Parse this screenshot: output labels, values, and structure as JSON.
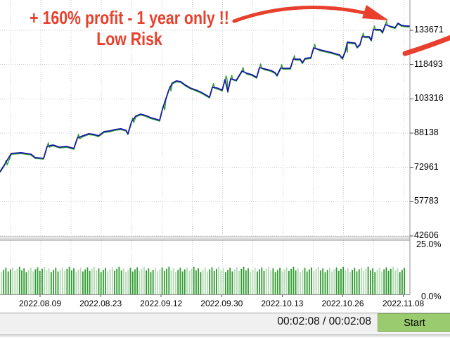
{
  "app": {
    "context": "strategy-tester-visualization"
  },
  "annotation": {
    "title": "+ 160% profit - 1 year only !!",
    "subtitle": "Low Risk",
    "color": "#e8402c",
    "arrow": "curved red arrow from headline to final equity peak",
    "swoosh": "red curved stroke entering from right edge below top value label"
  },
  "status_bar": {
    "timer_text": "00:02:08 / 00:02:08",
    "start_button_label": "Start",
    "start_button_color": "#9acb6f",
    "background": "#f0f0f0"
  },
  "colors": {
    "balance_line": "#1616a7",
    "equity_line": "#2e9e2e",
    "grid": "#cbcbcb",
    "panel_border": "#8f8f8f",
    "bar_dark": "#2f9b2f",
    "bar_light": "#b4d9b4",
    "annotation_red": "#e8402c"
  },
  "chart_data": {
    "type": "line",
    "title": "+ 160% profit - 1 year only !!",
    "subtitle": "Low Risk",
    "grid": {
      "on": true,
      "style": "dashed"
    },
    "legend": "none",
    "x_ticks": [
      "2022.08.09",
      "2022.08.23",
      "2022.09.12",
      "2022.09.30",
      "2022.10.13",
      "2022.10.26",
      "2022.11.08"
    ],
    "panels": [
      {
        "name": "balance-equity",
        "y_ticks": [
          "133671",
          "118493",
          "103316",
          "88138",
          "72961",
          "57783",
          "42606"
        ],
        "y_tick_values": [
          133671,
          118493,
          103316,
          88138,
          72961,
          57783,
          42606
        ],
        "ylim_approx": [
          41900,
          147000
        ],
        "series": [
          {
            "name": "balance",
            "color": "#1616a7",
            "points": [
              [
                0,
                71200
              ],
              [
                7,
                74600
              ],
              [
                16,
                79250
              ],
              [
                30,
                79550
              ],
              [
                44,
                78950
              ],
              [
                50,
                77400
              ],
              [
                62,
                77100
              ],
              [
                67,
                82350
              ],
              [
                75,
                83000
              ],
              [
                85,
                82050
              ],
              [
                95,
                82350
              ],
              [
                105,
                81450
              ],
              [
                110,
                86100
              ],
              [
                118,
                87050
              ],
              [
                126,
                87950
              ],
              [
                134,
                87650
              ],
              [
                140,
                87050
              ],
              [
                148,
                88900
              ],
              [
                156,
                89200
              ],
              [
                164,
                89850
              ],
              [
                172,
                90150
              ],
              [
                179,
                89500
              ],
              [
                182,
                87950
              ],
              [
                187,
                93250
              ],
              [
                193,
                95750
              ],
              [
                200,
                96650
              ],
              [
                207,
                96050
              ],
              [
                214,
                95100
              ],
              [
                221,
                94500
              ],
              [
                227,
                93900
              ],
              [
                231,
                98850
              ],
              [
                236,
                103500
              ],
              [
                240,
                107250
              ],
              [
                245,
                110350
              ],
              [
                251,
                111300
              ],
              [
                257,
                111000
              ],
              [
                264,
                109400
              ],
              [
                271,
                108150
              ],
              [
                279,
                107250
              ],
              [
                286,
                106300
              ],
              [
                293,
                105050
              ],
              [
                298,
                104150
              ],
              [
                302,
                108500
              ],
              [
                309,
                108150
              ],
              [
                316,
                107250
              ],
              [
                320,
                111900
              ],
              [
                324,
                106600
              ],
              [
                328,
                112200
              ],
              [
                336,
                111600
              ],
              [
                344,
                115650
              ],
              [
                351,
                114700
              ],
              [
                358,
                114100
              ],
              [
                365,
                112850
              ],
              [
                369,
                117200
              ],
              [
                377,
                116550
              ],
              [
                385,
                115950
              ],
              [
                391,
                115000
              ],
              [
                394,
                113750
              ],
              [
                399,
                116900
              ],
              [
                413,
                116900
              ],
              [
                417,
                120900
              ],
              [
                427,
                120900
              ],
              [
                430,
                119350
              ],
              [
                434,
                121250
              ],
              [
                442,
                121550
              ],
              [
                446,
                125900
              ],
              [
                456,
                124950
              ],
              [
                469,
                124050
              ],
              [
                483,
                122800
              ],
              [
                487,
                121250
              ],
              [
                491,
                124350
              ],
              [
                494,
                128400
              ],
              [
                505,
                128050
              ],
              [
                508,
                126200
              ],
              [
                512,
                127450
              ],
              [
                515,
                130850
              ],
              [
                525,
                130850
              ],
              [
                528,
                129300
              ],
              [
                531,
                134000
              ],
              [
                541,
                134000
              ],
              [
                544,
                132750
              ],
              [
                548,
                136150
              ],
              [
                557,
                135250
              ],
              [
                562,
                134900
              ],
              [
                566,
                136800
              ],
              [
                571,
                135850
              ],
              [
                578,
                135550
              ],
              [
                583,
                135550
              ]
            ]
          },
          {
            "name": "equity",
            "color": "#2e9e2e",
            "note": "tracks balance with small green overshoot spikes at trade closes"
          }
        ]
      },
      {
        "name": "deposit-load",
        "y_ticks": [
          "25.0%",
          "0.0%"
        ],
        "ylim": [
          0,
          25
        ],
        "bars": {
          "count": 179,
          "avg_height_pct": 11.6,
          "height_range_pct": [
            10.4,
            13.0
          ],
          "color_dark": "#2f9b2f",
          "color_light": "#b4d9b4"
        }
      }
    ]
  }
}
